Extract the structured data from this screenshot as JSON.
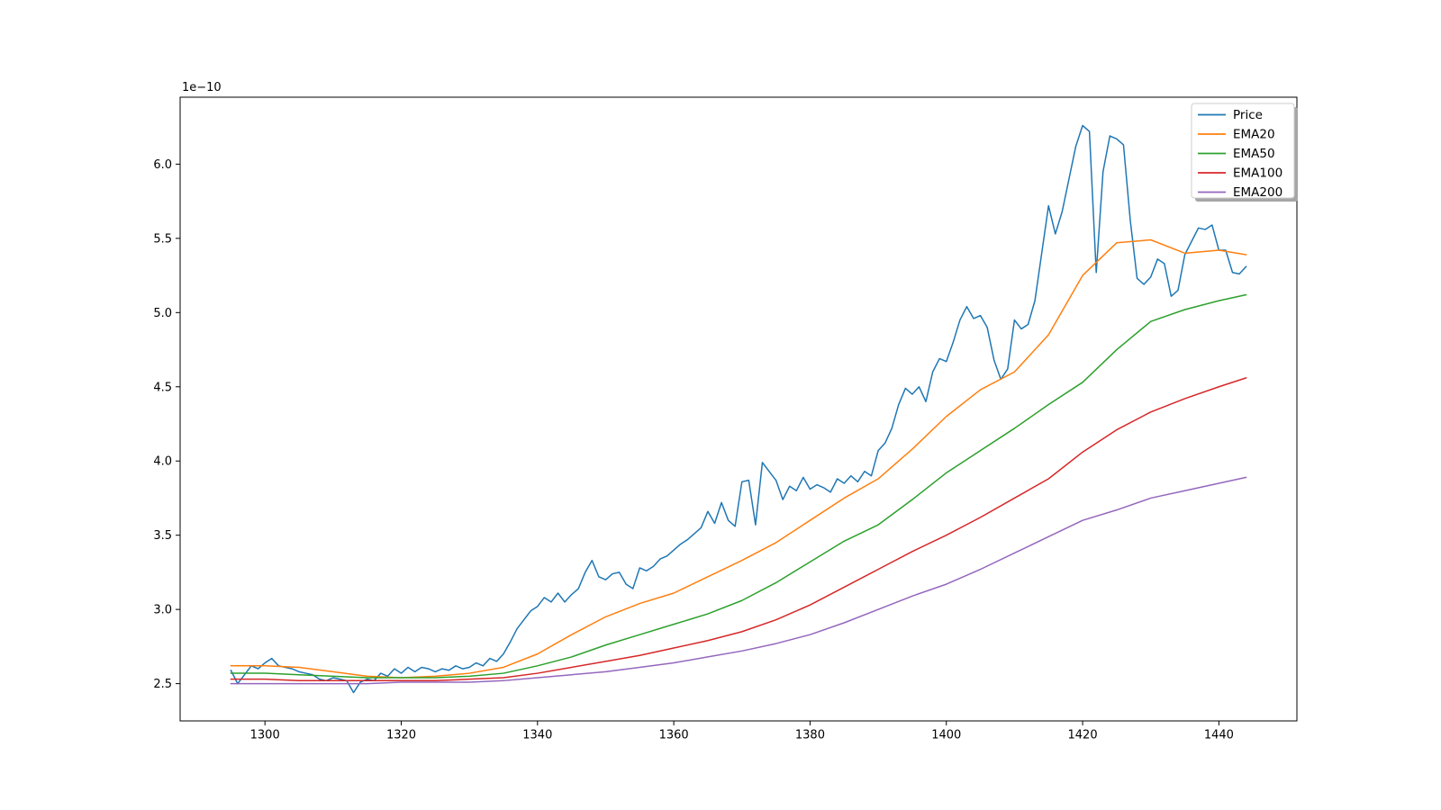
{
  "figure": {
    "background": "#ffffff",
    "offset_label": "1e−10"
  },
  "chart_data": {
    "type": "line",
    "title": "",
    "xlabel": "",
    "ylabel": "",
    "offset_label": "1e−10",
    "grid": false,
    "legend_position": "upper right",
    "xlim": [
      1287.55,
      1451.45
    ],
    "ylim": [
      2.249,
      6.451
    ],
    "x_ticks": [
      1300,
      1320,
      1340,
      1360,
      1380,
      1400,
      1420,
      1440
    ],
    "y_ticks": [
      "2.5",
      "3.0",
      "3.5",
      "4.0",
      "4.5",
      "5.0",
      "5.5",
      "6.0"
    ],
    "y_tick_values": [
      2.5,
      3.0,
      3.5,
      4.0,
      4.5,
      5.0,
      5.5,
      6.0
    ],
    "y_scale_factor": "1e-10",
    "series": [
      {
        "name": "Price",
        "color": "#1f77b4",
        "x_start": 1295,
        "x_step": 1,
        "values": [
          2.59,
          2.5,
          2.56,
          2.62,
          2.6,
          2.64,
          2.67,
          2.62,
          2.61,
          2.6,
          2.58,
          2.57,
          2.56,
          2.53,
          2.52,
          2.54,
          2.53,
          2.52,
          2.44,
          2.51,
          2.53,
          2.52,
          2.57,
          2.55,
          2.6,
          2.57,
          2.61,
          2.58,
          2.61,
          2.6,
          2.58,
          2.6,
          2.59,
          2.62,
          2.6,
          2.61,
          2.64,
          2.62,
          2.67,
          2.65,
          2.7,
          2.78,
          2.87,
          2.93,
          2.99,
          3.02,
          3.08,
          3.05,
          3.11,
          3.05,
          3.1,
          3.14,
          3.25,
          3.33,
          3.22,
          3.2,
          3.24,
          3.25,
          3.17,
          3.14,
          3.28,
          3.26,
          3.29,
          3.34,
          3.36,
          3.4,
          3.44,
          3.47,
          3.51,
          3.55,
          3.66,
          3.58,
          3.72,
          3.6,
          3.56,
          3.86,
          3.87,
          3.57,
          3.99,
          3.93,
          3.87,
          3.74,
          3.83,
          3.8,
          3.89,
          3.81,
          3.84,
          3.82,
          3.79,
          3.88,
          3.85,
          3.9,
          3.86,
          3.93,
          3.9,
          4.07,
          4.12,
          4.22,
          4.38,
          4.49,
          4.45,
          4.5,
          4.4,
          4.6,
          4.69,
          4.67,
          4.8,
          4.95,
          5.04,
          4.96,
          4.98,
          4.9,
          4.68,
          4.55,
          4.62,
          4.95,
          4.89,
          4.92,
          5.08,
          5.4,
          5.72,
          5.53,
          5.68,
          5.9,
          6.12,
          6.26,
          6.22,
          5.27,
          5.95,
          6.19,
          6.17,
          6.13,
          5.62,
          5.23,
          5.19,
          5.24,
          5.36,
          5.33,
          5.11,
          5.15,
          5.39,
          5.48,
          5.57,
          5.56,
          5.59,
          5.42,
          5.42,
          5.27,
          5.26,
          5.31
        ]
      },
      {
        "name": "EMA20",
        "color": "#ff7f0e",
        "x": [
          1295,
          1300,
          1305,
          1310,
          1315,
          1320,
          1325,
          1330,
          1335,
          1340,
          1345,
          1350,
          1355,
          1360,
          1365,
          1370,
          1375,
          1380,
          1385,
          1390,
          1395,
          1400,
          1405,
          1410,
          1415,
          1420,
          1425,
          1430,
          1435,
          1440,
          1444
        ],
        "values": [
          2.62,
          2.62,
          2.61,
          2.58,
          2.55,
          2.54,
          2.55,
          2.57,
          2.61,
          2.7,
          2.83,
          2.95,
          3.04,
          3.11,
          3.22,
          3.33,
          3.45,
          3.6,
          3.75,
          3.88,
          4.08,
          4.3,
          4.48,
          4.6,
          4.85,
          5.25,
          5.47,
          5.49,
          5.4,
          5.42,
          5.39
        ]
      },
      {
        "name": "EMA50",
        "color": "#2ca02c",
        "x": [
          1295,
          1300,
          1305,
          1310,
          1315,
          1320,
          1325,
          1330,
          1335,
          1340,
          1345,
          1350,
          1355,
          1360,
          1365,
          1370,
          1375,
          1380,
          1385,
          1390,
          1395,
          1400,
          1405,
          1410,
          1415,
          1420,
          1425,
          1430,
          1435,
          1440,
          1444
        ],
        "values": [
          2.57,
          2.57,
          2.56,
          2.55,
          2.54,
          2.54,
          2.54,
          2.55,
          2.57,
          2.62,
          2.68,
          2.76,
          2.83,
          2.9,
          2.97,
          3.06,
          3.18,
          3.32,
          3.46,
          3.57,
          3.74,
          3.92,
          4.07,
          4.22,
          4.38,
          4.53,
          4.75,
          4.94,
          5.02,
          5.08,
          5.12
        ]
      },
      {
        "name": "EMA100",
        "color": "#d62728",
        "x": [
          1295,
          1300,
          1305,
          1310,
          1315,
          1320,
          1325,
          1330,
          1335,
          1340,
          1345,
          1350,
          1355,
          1360,
          1365,
          1370,
          1375,
          1380,
          1385,
          1390,
          1395,
          1400,
          1405,
          1410,
          1415,
          1420,
          1425,
          1430,
          1435,
          1440,
          1444
        ],
        "values": [
          2.53,
          2.53,
          2.52,
          2.52,
          2.52,
          2.52,
          2.52,
          2.53,
          2.54,
          2.57,
          2.61,
          2.65,
          2.69,
          2.74,
          2.79,
          2.85,
          2.93,
          3.03,
          3.15,
          3.27,
          3.39,
          3.5,
          3.62,
          3.75,
          3.88,
          4.06,
          4.21,
          4.33,
          4.42,
          4.5,
          4.56
        ]
      },
      {
        "name": "EMA200",
        "color": "#9467bd",
        "x": [
          1295,
          1300,
          1305,
          1310,
          1315,
          1320,
          1325,
          1330,
          1335,
          1340,
          1345,
          1350,
          1355,
          1360,
          1365,
          1370,
          1375,
          1380,
          1385,
          1390,
          1395,
          1400,
          1405,
          1410,
          1415,
          1420,
          1425,
          1430,
          1435,
          1440,
          1444
        ],
        "values": [
          2.5,
          2.5,
          2.5,
          2.5,
          2.5,
          2.51,
          2.51,
          2.51,
          2.52,
          2.54,
          2.56,
          2.58,
          2.61,
          2.64,
          2.68,
          2.72,
          2.77,
          2.83,
          2.91,
          3.0,
          3.09,
          3.17,
          3.27,
          3.38,
          3.49,
          3.6,
          3.67,
          3.75,
          3.8,
          3.85,
          3.89
        ]
      }
    ],
    "legend": {
      "entries": [
        "Price",
        "EMA20",
        "EMA50",
        "EMA100",
        "EMA200"
      ],
      "border_color": "#cccccc",
      "shadow_color": "#a6a6a6",
      "background": "#ffffff"
    }
  }
}
